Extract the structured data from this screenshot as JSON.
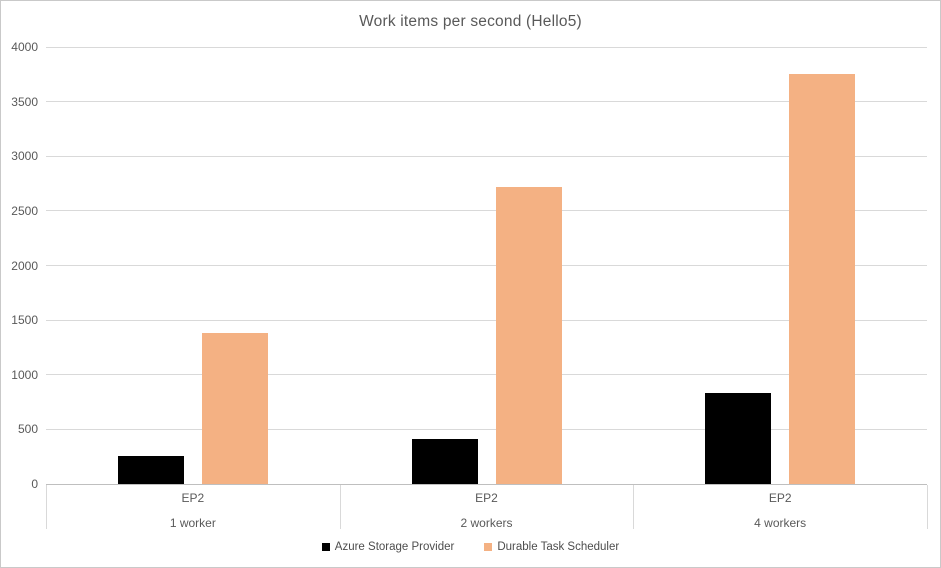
{
  "title": "Work items per second (Hello5)",
  "chart_data": {
    "type": "bar",
    "title": "Work items per second (Hello5)",
    "categories": [
      {
        "group": "EP2",
        "workers": "1 worker"
      },
      {
        "group": "EP2",
        "workers": "2 workers"
      },
      {
        "group": "EP2",
        "workers": "4 workers"
      }
    ],
    "series": [
      {
        "name": "Azure Storage Provider",
        "color": "#000000",
        "values": [
          260,
          415,
          830
        ]
      },
      {
        "name": "Durable Task Scheduler",
        "color": "#F4B183",
        "values": [
          1380,
          2720,
          3750
        ]
      }
    ],
    "ylim": [
      0,
      4000
    ],
    "yticks": [
      0,
      500,
      1000,
      1500,
      2000,
      2500,
      3000,
      3500,
      4000
    ],
    "xlabel": "",
    "ylabel": "",
    "grid": true,
    "legend_position": "bottom"
  },
  "style_colors": {
    "grid": "#d9d9d9",
    "axis": "#bfbfbf",
    "text": "#595959",
    "background": "#ffffff",
    "border": "#c9c9c9"
  }
}
